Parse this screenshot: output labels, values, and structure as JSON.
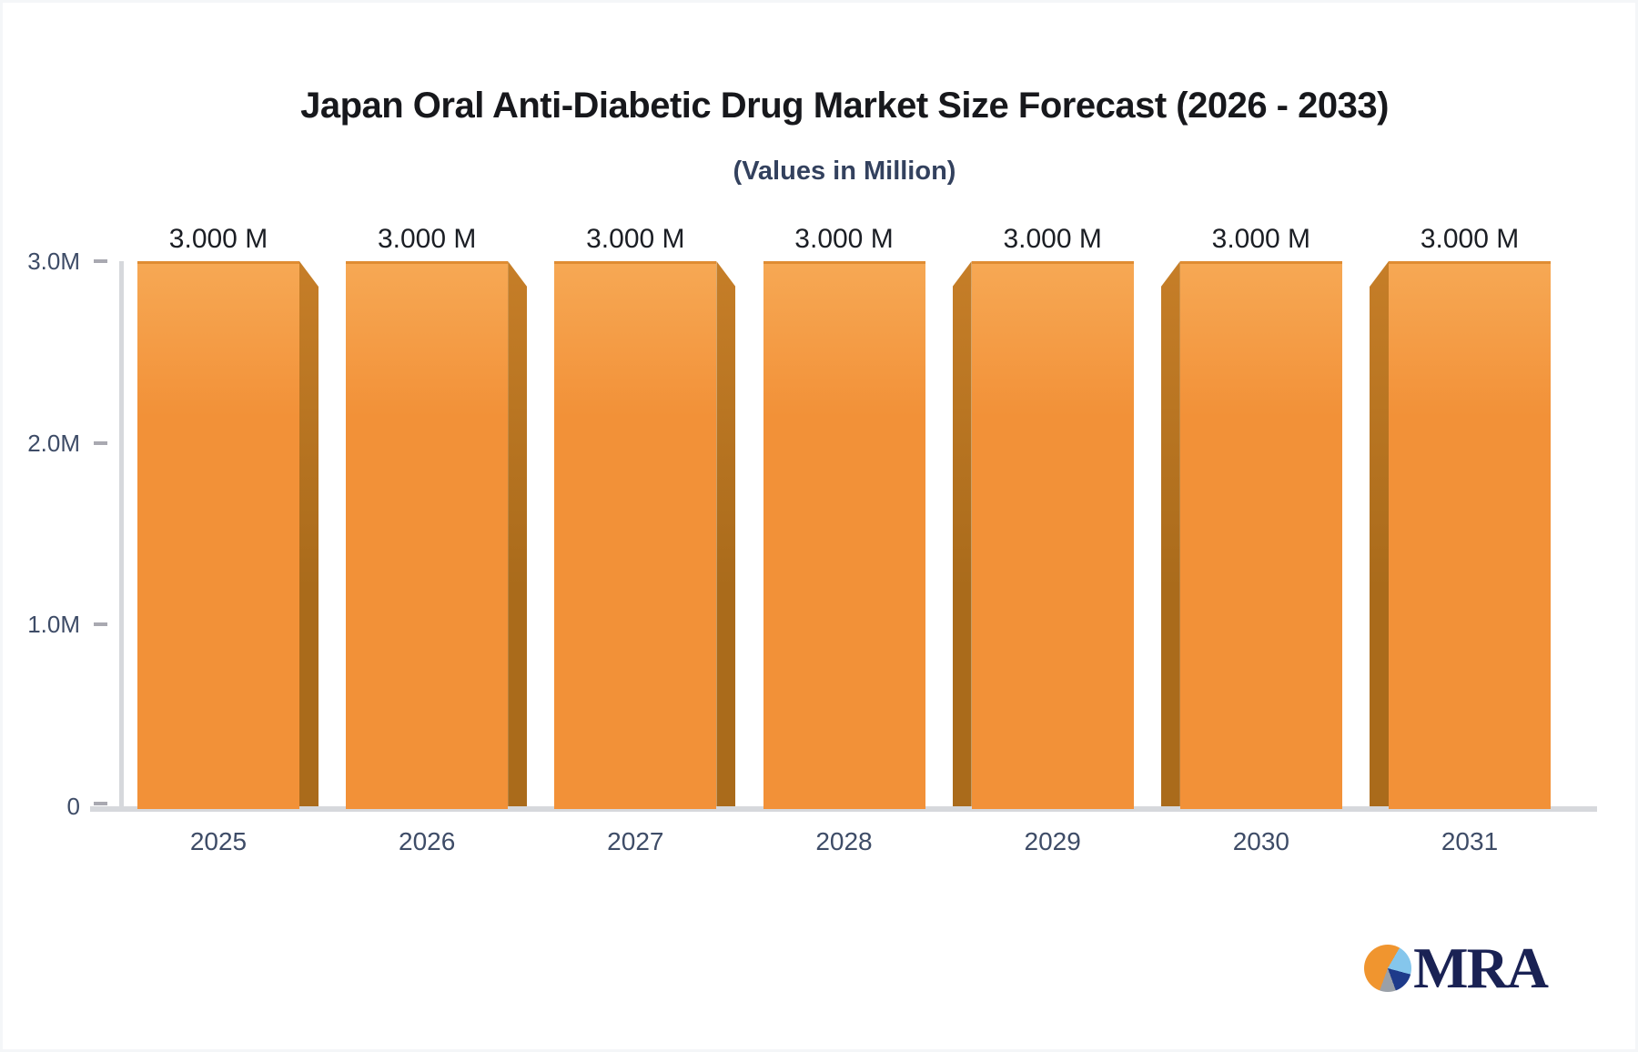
{
  "header": {
    "title": "Japan Oral Anti-Diabetic Drug Market Size Forecast (2026 - 2033)",
    "subtitle": "(Values in Million)",
    "title_color": "#17181c",
    "subtitle_color": "#33415e"
  },
  "chart_data": {
    "type": "bar",
    "title": "Japan Oral Anti-Diabetic Drug Market Size Forecast (2026 - 2033)",
    "subtitle": "(Values in Million)",
    "categories": [
      "2025",
      "2026",
      "2027",
      "2028",
      "2029",
      "2030",
      "2031"
    ],
    "values": [
      3.0,
      3.0,
      3.0,
      3.0,
      3.0,
      3.0,
      3.0
    ],
    "value_labels": [
      "3.000 M",
      "3.000 M",
      "3.000 M",
      "3.000 M",
      "3.000 M",
      "3.000 M",
      "3.000 M"
    ],
    "unit": "Million",
    "xlabel": "",
    "ylabel": "",
    "ylim": [
      0,
      3.0
    ],
    "yticks": [
      {
        "label": "3.0M",
        "value": 3.0
      },
      {
        "label": "2.0M",
        "value": 2.0
      },
      {
        "label": "1.0M",
        "value": 1.0
      },
      {
        "label": "0",
        "value": 0
      }
    ],
    "grid": false,
    "legend": false,
    "bar_style": "3d",
    "colors": {
      "bar_face_top": "#f6a854",
      "bar_face": "#f29138",
      "bar_face_edge": "#df8c33",
      "bar_side_top": "#c67e28",
      "bar_side": "#aa6b1b",
      "axis_line": "#d6d8dc",
      "tick_dash": "#a9a9b1",
      "tick_text": "#3e4c67",
      "value_text": "#1b1e24"
    }
  },
  "logo": {
    "text": "MRA",
    "text_color": "#1a2254",
    "pie_colors": {
      "orange": "#f0952f",
      "light_blue": "#85c6ec",
      "dark_blue": "#1e3a8a",
      "gray": "#9aa0a8"
    }
  }
}
